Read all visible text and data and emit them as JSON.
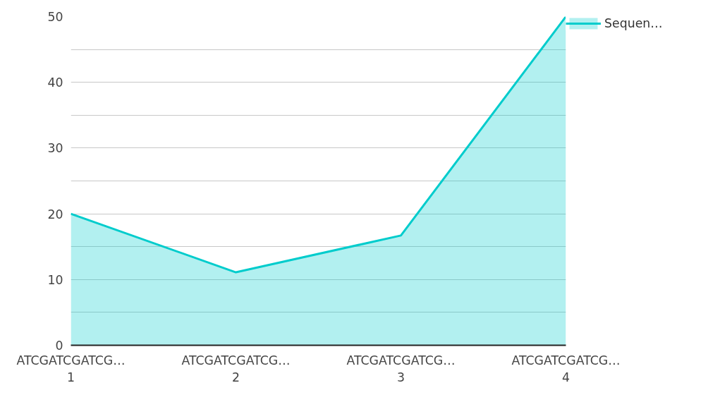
{
  "chart_data": {
    "type": "area",
    "categories": [
      "ATCGATCGATCG…\n1",
      "ATCGATCGATCG…\n2",
      "ATCGATCGATCG…\n3",
      "ATCGATCGATCG…\n4"
    ],
    "series": [
      {
        "name": "Sequen…",
        "color": "#00cccc",
        "values": [
          20,
          11.1,
          16.7,
          50
        ]
      }
    ],
    "ylim": [
      0,
      50
    ],
    "yticks": [
      0,
      {
        "value": 5,
        "label": null
      },
      10,
      {
        "value": 15,
        "label": null
      },
      20,
      {
        "value": 25,
        "label": null
      },
      30,
      {
        "value": 35,
        "label": null
      },
      40,
      {
        "value": 45,
        "label": null
      },
      50
    ],
    "grid": "y",
    "legend": "top right"
  }
}
